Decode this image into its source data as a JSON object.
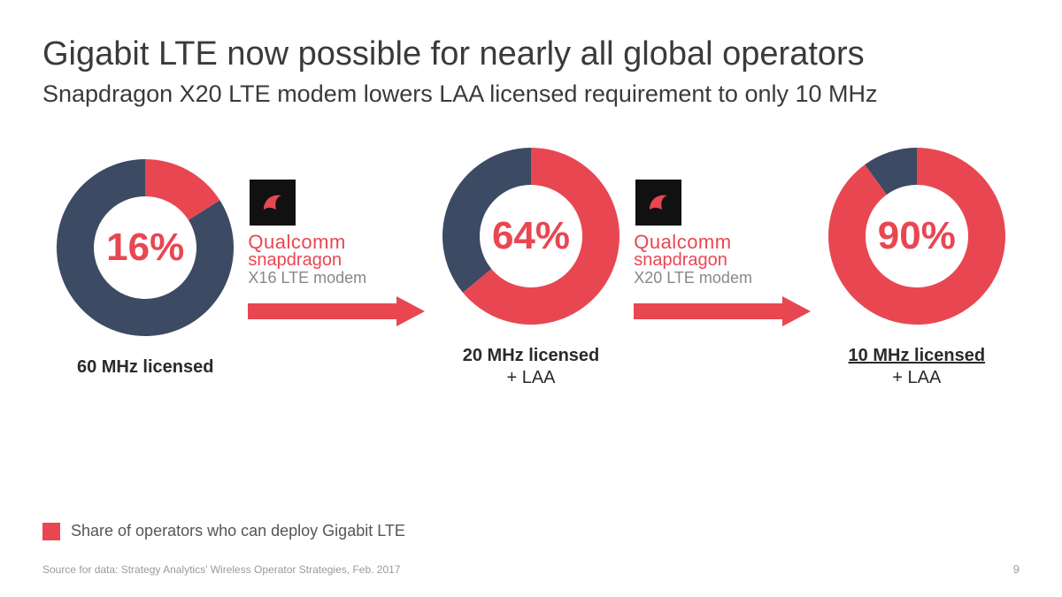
{
  "title": "Gigabit LTE now possible for nearly all global operators",
  "subtitle": "Snapdragon X20 LTE modem lowers LAA licensed requirement to only 10 MHz",
  "colors": {
    "accent": "#e84752",
    "dark": "#3c4a63",
    "title_text": "#3a3a3a",
    "caption_text": "#2a2a2a",
    "logo_bg": "#111111",
    "logo_mark": "#e84752",
    "background": "#ffffff",
    "muted": "#9a9a9a"
  },
  "donuts": [
    {
      "percent": 16,
      "percent_label": "16%",
      "caption_line1": "60 MHz licensed",
      "caption_line2": "",
      "underline_line1": false
    },
    {
      "percent": 64,
      "percent_label": "64%",
      "caption_line1": "20 MHz licensed",
      "caption_line2": "+ LAA",
      "underline_line1": false
    },
    {
      "percent": 90,
      "percent_label": "90%",
      "caption_line1": "10 MHz licensed",
      "caption_line2": "+ LAA",
      "underline_line1": true
    }
  ],
  "donut_style": {
    "type": "donut",
    "outer_radius": 100,
    "inner_radius": 58,
    "start_angle_deg": 0,
    "center_fontsize": 44
  },
  "arrows": [
    {
      "brand_top": "Qualcomm",
      "brand_mid": "snapdragon",
      "brand_bot": "X16 LTE modem"
    },
    {
      "brand_top": "Qualcomm",
      "brand_mid": "snapdragon",
      "brand_bot": "X20 LTE modem"
    }
  ],
  "arrow_style": {
    "length": 200,
    "height": 30,
    "color": "#e84752"
  },
  "legend": {
    "swatch_color": "#e84752",
    "text": "Share of operators who can deploy Gigabit LTE"
  },
  "source": "Source for data: Strategy Analytics' Wireless Operator Strategies, Feb. 2017",
  "page_number": "9"
}
